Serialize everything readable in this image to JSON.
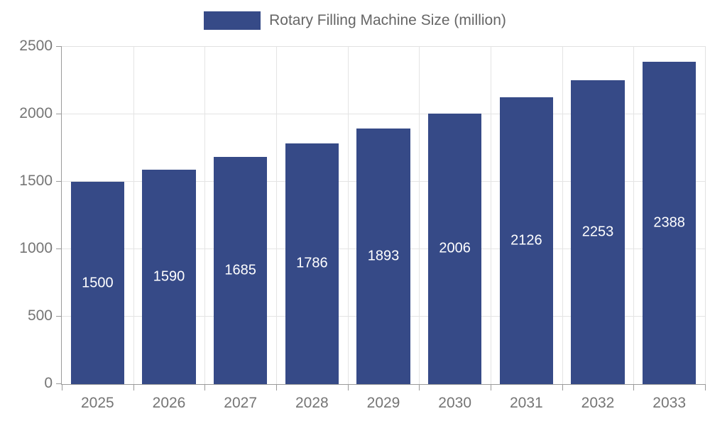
{
  "legend": {
    "label": "Rotary Filling Machine Size (million)"
  },
  "chart_data": {
    "type": "bar",
    "title": "Rotary Filling Machine Size (million)",
    "categories": [
      "2025",
      "2026",
      "2027",
      "2028",
      "2029",
      "2030",
      "2031",
      "2032",
      "2033"
    ],
    "values": [
      1500,
      1590,
      1685,
      1786,
      1893,
      2006,
      2126,
      2253,
      2388
    ],
    "xlabel": "",
    "ylabel": "",
    "ylim": [
      0,
      2500
    ],
    "yticks": [
      0,
      500,
      1000,
      1500,
      2000,
      2500
    ],
    "grid": true,
    "legend_position": "top",
    "bar_width_fraction": 0.75,
    "value_labels": "inside-middle"
  },
  "colors": {
    "bar": "#364A87",
    "value_label": "#FFFFFF",
    "axis_label": "#757575",
    "legend_text": "#666666",
    "axis_line": "#9A9A9A",
    "grid_line": "#E4E4E4",
    "background": "#FFFFFF"
  }
}
